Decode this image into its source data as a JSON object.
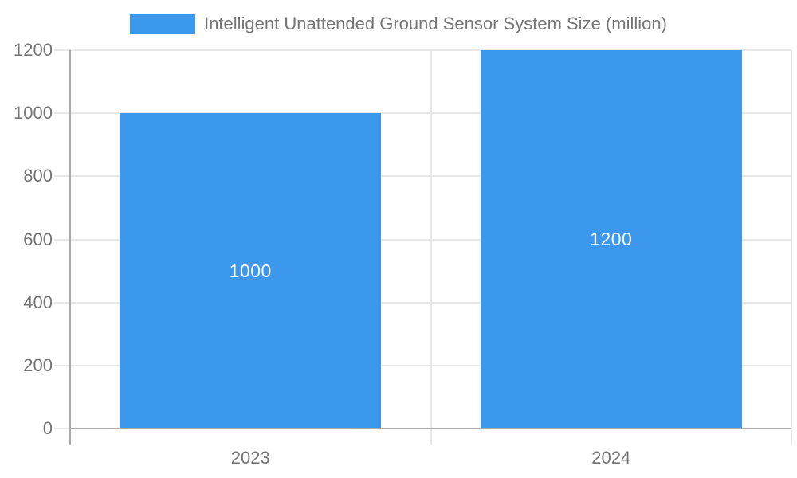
{
  "legend": {
    "label": "Intelligent Unattended Ground Sensor System Size (million)"
  },
  "chart_data": {
    "type": "bar",
    "title": "Intelligent Unattended Ground Sensor System Size (million)",
    "categories": [
      "2023",
      "2024"
    ],
    "values": [
      1000,
      1200
    ],
    "bar_labels": [
      "1000",
      "1200"
    ],
    "yticks": [
      0,
      200,
      400,
      600,
      800,
      1000,
      1200
    ],
    "ylim": [
      0,
      1200
    ],
    "xlabel": "",
    "ylabel": "",
    "grid": true,
    "legend_position": "top",
    "colors": {
      "bar": "#3B98EC",
      "grid": "#E7E7E7",
      "axis": "#A9A9A9",
      "text": "#757575",
      "bar_label_text": "#FFFFFF",
      "background": "#FFFFFF"
    }
  }
}
